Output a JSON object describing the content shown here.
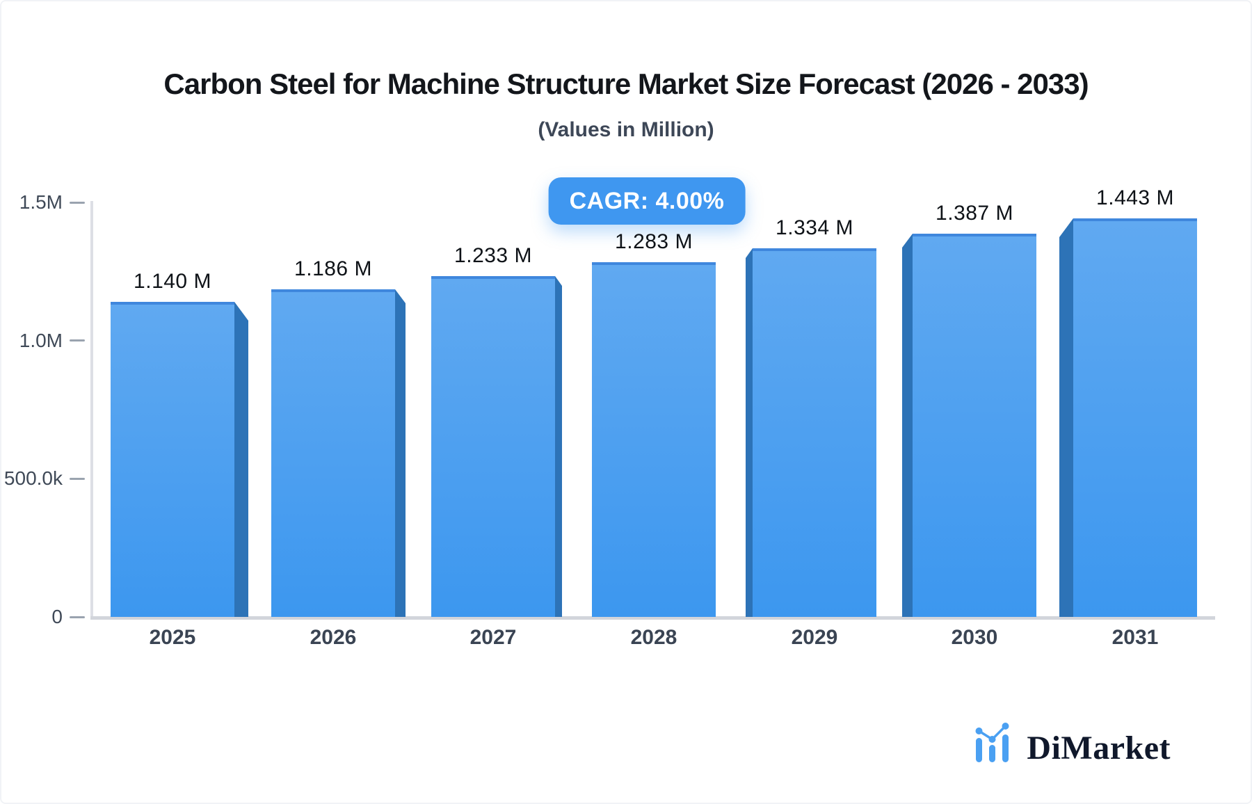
{
  "header": {
    "title": "Carbon Steel for Machine Structure Market Size Forecast (2026 - 2033)",
    "subtitle": "(Values in Million)"
  },
  "badge": {
    "label": "CAGR: 4.00%"
  },
  "chart_data": {
    "type": "bar",
    "title": "Carbon Steel for Machine Structure Market Size Forecast (2026 - 2033)",
    "subtitle": "(Values in Million)",
    "categories": [
      "2025",
      "2026",
      "2027",
      "2028",
      "2029",
      "2030",
      "2031"
    ],
    "values": [
      1140000,
      1186000,
      1233000,
      1283000,
      1334000,
      1387000,
      1443000
    ],
    "value_labels": [
      "1.140 M",
      "1.186 M",
      "1.233 M",
      "1.283 M",
      "1.334 M",
      "1.387 M",
      "1.443 M"
    ],
    "y_ticks": [
      {
        "label": "1.5M",
        "value": 1500000
      },
      {
        "label": "1.0M",
        "value": 1000000
      },
      {
        "label": "500.0k",
        "value": 500000
      },
      {
        "label": "0",
        "value": 0
      }
    ],
    "ylim": [
      0,
      1500000
    ],
    "xlabel": "",
    "ylabel": "",
    "grid": false,
    "legend_position": "none",
    "annotations": [
      "CAGR: 4.00%"
    ],
    "bar_style": "3d-perspective"
  },
  "logo": {
    "icon": "bar-chart-logo-icon",
    "text": "DiMarket"
  },
  "colors": {
    "faceTop": "#60a9f1",
    "faceBottom": "#3c97ef",
    "faceEdge": "#3f87dd",
    "side": "#2d73b7",
    "axisLine": "#dddfe5",
    "baseline": "#d2d5db",
    "tickDash": "#9aa3af",
    "yLabel": "#3f4957",
    "xLabel": "#3a4453",
    "valueLabel": "#0e1217",
    "title": "#13161b",
    "subtitle": "#3d4757",
    "badgeBg": "#3f97f0",
    "badgeText": "#ffffff",
    "logoBlue": "#4aa0f2",
    "logoDark": "#10182b",
    "cardBorder": "#f1f3f6"
  }
}
